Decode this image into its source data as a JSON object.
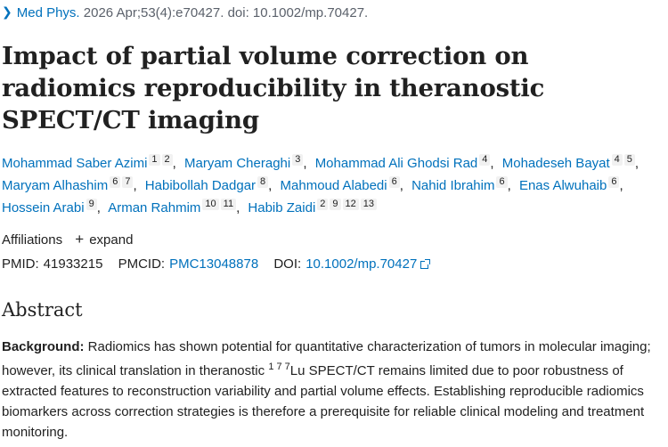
{
  "citation": {
    "journal": "Med Phys.",
    "details": "2026 Apr;53(4):e70427. doi: 10.1002/mp.70427."
  },
  "title": "Impact of partial volume correction on radiomics reproducibility in theranostic SPECT/CT imaging",
  "authors": [
    {
      "name": "Mohammad Saber Azimi",
      "affs": [
        "1",
        "2"
      ]
    },
    {
      "name": "Maryam Cheraghi",
      "affs": [
        "3"
      ]
    },
    {
      "name": "Mohammad Ali Ghodsi Rad",
      "affs": [
        "4"
      ]
    },
    {
      "name": "Mohadeseh Bayat",
      "affs": [
        "4",
        "5"
      ]
    },
    {
      "name": "Maryam Alhashim",
      "affs": [
        "6",
        "7"
      ]
    },
    {
      "name": "Habibollah Dadgar",
      "affs": [
        "8"
      ]
    },
    {
      "name": "Mahmoud Alabedi",
      "affs": [
        "6"
      ]
    },
    {
      "name": "Nahid Ibrahim",
      "affs": [
        "6"
      ]
    },
    {
      "name": "Enas Alwuhaib",
      "affs": [
        "6"
      ]
    },
    {
      "name": "Hossein Arabi",
      "affs": [
        "9"
      ]
    },
    {
      "name": "Arman Rahmim",
      "affs": [
        "10",
        "11"
      ]
    },
    {
      "name": "Habib Zaidi",
      "affs": [
        "2",
        "9",
        "12",
        "13"
      ]
    }
  ],
  "affiliations": {
    "label": "Affiliations",
    "expand_label": "expand"
  },
  "ids": {
    "pmid_label": "PMID:",
    "pmid": "41933215",
    "pmcid_label": "PMCID:",
    "pmcid": "PMC13048878",
    "doi_label": "DOI:",
    "doi": "10.1002/mp.70427"
  },
  "abstract": {
    "heading": "Abstract",
    "background_label": "Background:",
    "text_before_sup": " Radiomics has shown potential for quantitative characterization of tumors in molecular imaging; however, its clinical translation in theranostic ",
    "isotope_sup": "1 7 7",
    "text_after_sup": "Lu SPECT/CT remains limited due to poor robustness of extracted features to reconstruction variability and partial volume effects. Establishing reproducible radiomics biomarkers across correction strategies is therefore a prerequisite for reliable clinical modeling and treatment monitoring."
  },
  "icons": {
    "chevron": "chevron-right-icon",
    "plus": "plus-icon",
    "external": "external-link-icon"
  },
  "colors": {
    "link": "#0071bc",
    "text": "#212121",
    "muted": "#5b616b",
    "badge_bg": "#f1f1f1"
  }
}
